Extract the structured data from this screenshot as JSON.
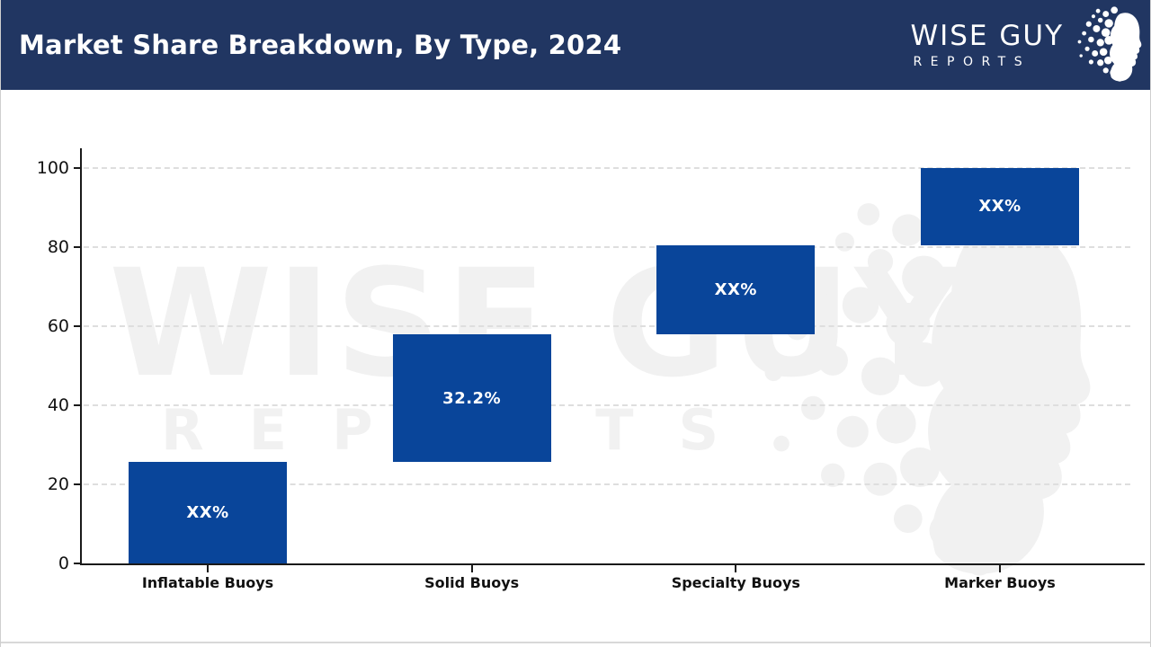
{
  "header": {
    "title": "Market Share Breakdown, By Type, 2024",
    "logo": {
      "line1": "WISE GUY",
      "line2": "REPORTS"
    }
  },
  "watermark": {
    "line1": "WISE GUY",
    "line2": "REPORTS"
  },
  "colors": {
    "header_bg": "#213662",
    "bar": "#09459a",
    "axis": "#1a1a1a",
    "grid": "#dedede",
    "title_text": "#ffffff",
    "bar_label_text": "#ffffff",
    "tick_text": "#111111",
    "watermark": "#f1f1f1"
  },
  "chart_data": {
    "type": "bar",
    "subtype": "floating-waterfall",
    "title": "Market Share Breakdown, By Type, 2024",
    "categories": [
      "Inflatable Buoys",
      "Solid Buoys",
      "Specialty Buoys",
      "Marker Buoys"
    ],
    "segments": [
      {
        "category": "Inflatable Buoys",
        "start": 0,
        "end": 25.7,
        "value": 25.7,
        "label": "XX%"
      },
      {
        "category": "Solid Buoys",
        "start": 25.7,
        "end": 57.9,
        "value": 32.2,
        "label": "32.2%"
      },
      {
        "category": "Specialty Buoys",
        "start": 57.9,
        "end": 80.5,
        "value": 22.6,
        "label": "XX%"
      },
      {
        "category": "Marker Buoys",
        "start": 80.5,
        "end": 100,
        "value": 19.5,
        "label": "XX%"
      }
    ],
    "yticks": [
      0,
      20,
      40,
      60,
      80,
      100
    ],
    "ylim": [
      0,
      100
    ],
    "xlabel": "",
    "ylabel": "",
    "grid": "dashed-horizontal",
    "legend": "none"
  }
}
